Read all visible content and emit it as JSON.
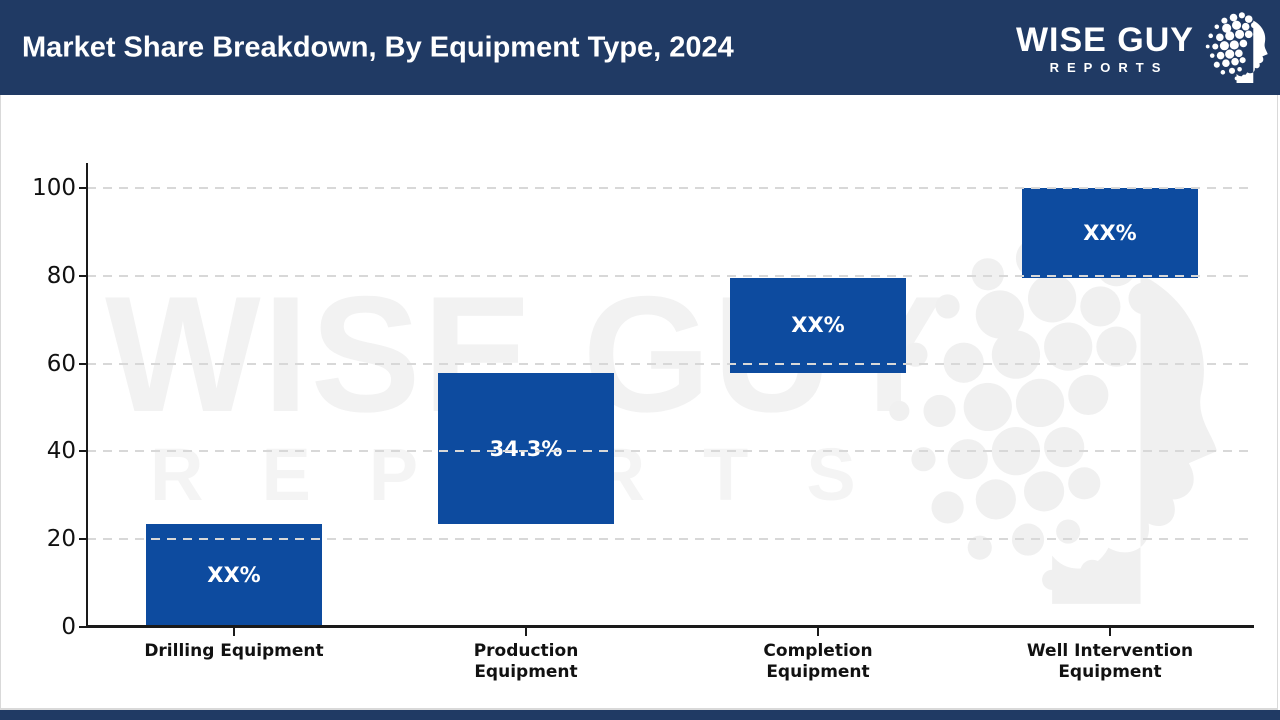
{
  "header": {
    "title": "Market Share Breakdown, By Equipment Type, 2024",
    "bg_color": "#203a64",
    "logo": {
      "line1": "WISE GUY",
      "line2": "REPORTS"
    }
  },
  "watermark": {
    "line1": "WISE GUY",
    "line2": "REPORTS"
  },
  "footer": {
    "bg_color": "#203a64"
  },
  "chart_data": {
    "type": "bar",
    "subtype": "floating-waterfall",
    "title": "Market Share Breakdown, By Equipment Type, 2024",
    "categories": [
      "Drilling Equipment",
      "Production\nEquipment",
      "Completion\nEquipment",
      "Well Intervention\nEquipment"
    ],
    "bars": [
      {
        "category": "Drilling Equipment",
        "start": 0,
        "end": 23.5,
        "label": "XX%"
      },
      {
        "category": "Production Equipment",
        "start": 23.5,
        "end": 57.8,
        "label": "34.3%",
        "value": 34.3
      },
      {
        "category": "Completion Equipment",
        "start": 57.8,
        "end": 79.6,
        "label": "XX%"
      },
      {
        "category": "Well Intervention Equipment",
        "start": 79.6,
        "end": 100,
        "label": "XX%"
      }
    ],
    "xlabel": "",
    "ylabel": "",
    "ylim": [
      0,
      105
    ],
    "yticks": [
      0,
      20,
      40,
      60,
      80,
      100
    ],
    "grid": "horizontal-dashed, drawn above bars",
    "legend": "none",
    "bar_color": "#0d4b9f",
    "bar_label_color": "#ffffff",
    "axis_color": "#1a1a1a"
  }
}
